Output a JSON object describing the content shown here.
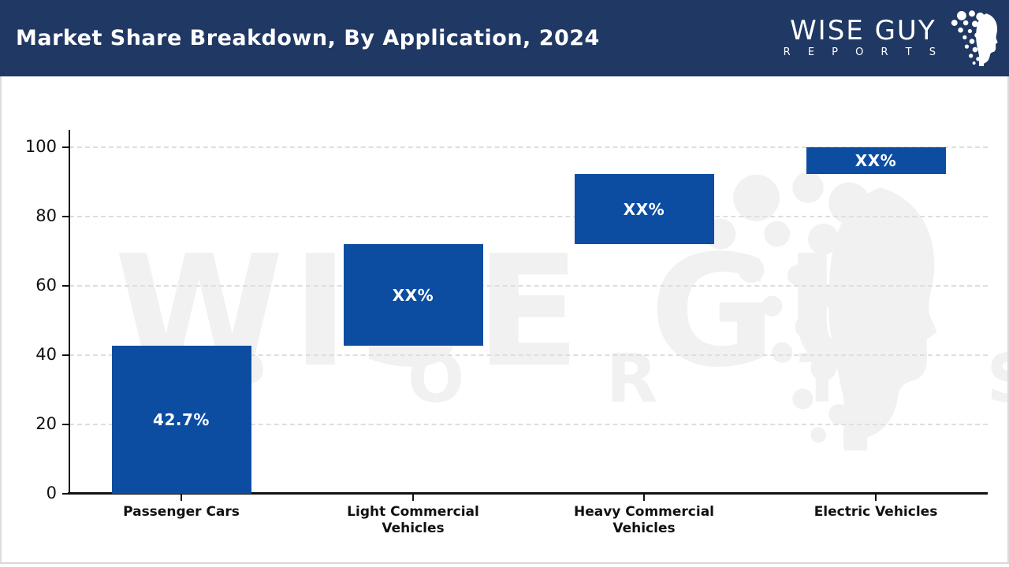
{
  "header": {
    "title": "Market Share Breakdown, By Application, 2024",
    "bg_color": "#203864",
    "logo": {
      "line1": "WISE GUY",
      "line2": "R E P O R T S",
      "head_icon": "dotted-face-profile"
    }
  },
  "watermark": {
    "line1": "WISE GU",
    "line2": "P O R T S",
    "color": "#f1f1f1",
    "head_icon": "dotted-face-profile"
  },
  "chart_data": {
    "type": "bar",
    "subtype": "waterfall",
    "title": "Market Share Breakdown, By Application, 2024",
    "categories": [
      "Passenger Cars",
      "Light Commercial Vehicles",
      "Heavy Commercial Vehicles",
      "Electric Vehicles"
    ],
    "segments": [
      {
        "category": "Passenger Cars",
        "start": 0,
        "end": 42.7,
        "label": "42.7%"
      },
      {
        "category": "Light Commercial Vehicles",
        "start": 42.7,
        "end": 72,
        "label": "XX%"
      },
      {
        "category": "Heavy Commercial Vehicles",
        "start": 72,
        "end": 92.3,
        "label": "XX%"
      },
      {
        "category": "Electric Vehicles",
        "start": 92.3,
        "end": 100,
        "label": "XX%"
      }
    ],
    "xlabel": "",
    "ylabel": "",
    "ylim": [
      0,
      100
    ],
    "yticks": [
      0,
      20,
      40,
      60,
      80,
      100
    ],
    "grid": "horizontal-dashed",
    "legend": "none",
    "bar_color": "#0c4da2",
    "bar_label_color": "#ffffff",
    "axis_color": "#111111",
    "gridline_color": "#dedede"
  }
}
